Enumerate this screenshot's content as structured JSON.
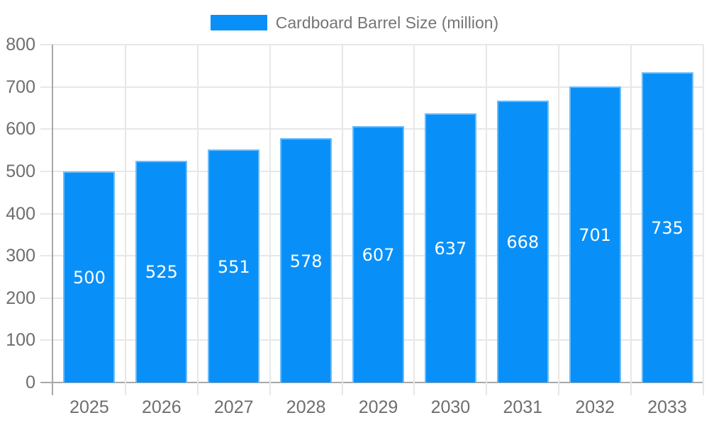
{
  "legend": {
    "label": "Cardboard Barrel Size (million)"
  },
  "chart_data": {
    "type": "bar",
    "title": "Cardboard Barrel Size (million)",
    "categories": [
      "2025",
      "2026",
      "2027",
      "2028",
      "2029",
      "2030",
      "2031",
      "2032",
      "2033"
    ],
    "series": [
      {
        "name": "Cardboard Barrel Size (million)",
        "values": [
          500,
          525,
          551,
          578,
          607,
          637,
          668,
          701,
          735
        ]
      }
    ],
    "bar_value_labels": [
      500,
      525,
      551,
      578,
      607,
      637,
      668,
      701,
      735
    ],
    "xlabel": "",
    "ylabel": "",
    "ylim": [
      0,
      800
    ],
    "ytick_step": 100,
    "y_tick_labels": [
      "0",
      "100",
      "200",
      "300",
      "400",
      "500",
      "600",
      "700",
      "800"
    ],
    "grid": true,
    "legend_position": "top",
    "colors": {
      "bar": "#0990f8",
      "bar_border": "rgba(255,255,255,0.4)",
      "bar_label_text": "#ffffff",
      "grid_line": "#e7e7e7",
      "axis_line": "#a8a8a8",
      "tick_text": "#6e6e6e",
      "legend_text": "#757575",
      "background": "#ffffff"
    }
  }
}
